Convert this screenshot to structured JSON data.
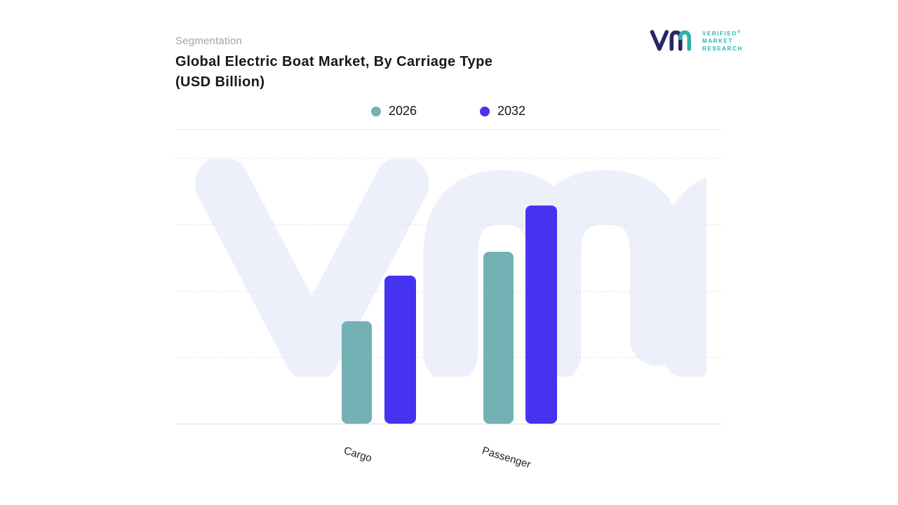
{
  "header": {
    "eyebrow": "Segmentation",
    "title_line1": "Global Electric Boat Market, By Carriage Type",
    "title_line2": "(USD Billion)"
  },
  "logo": {
    "name_line1": "VERIFIED",
    "name_line2": "MARKET",
    "name_line3": "RESEARCH",
    "registered_mark": "®",
    "navy": "#2a2666",
    "teal": "#2ab3af"
  },
  "chart_data": {
    "type": "bar",
    "title": "Global Electric Boat Market, By Carriage Type (USD Billion)",
    "units": "USD Billion",
    "categories": [
      "Cargo",
      "Passenger"
    ],
    "series": [
      {
        "name": "2026",
        "color": "#73b1b5",
        "values": [
          47,
          79
        ]
      },
      {
        "name": "2032",
        "color": "#4633f0",
        "values": [
          68,
          100
        ]
      }
    ],
    "ylim": [
      0,
      122
    ],
    "xlabel": "",
    "ylabel": "",
    "grid": "horizontal-dashed",
    "legend_position": "top-center",
    "y_axis_labels_visible": false,
    "value_labels_visible": false
  },
  "watermark": {
    "text": "vmr",
    "color": "#edeffa"
  }
}
